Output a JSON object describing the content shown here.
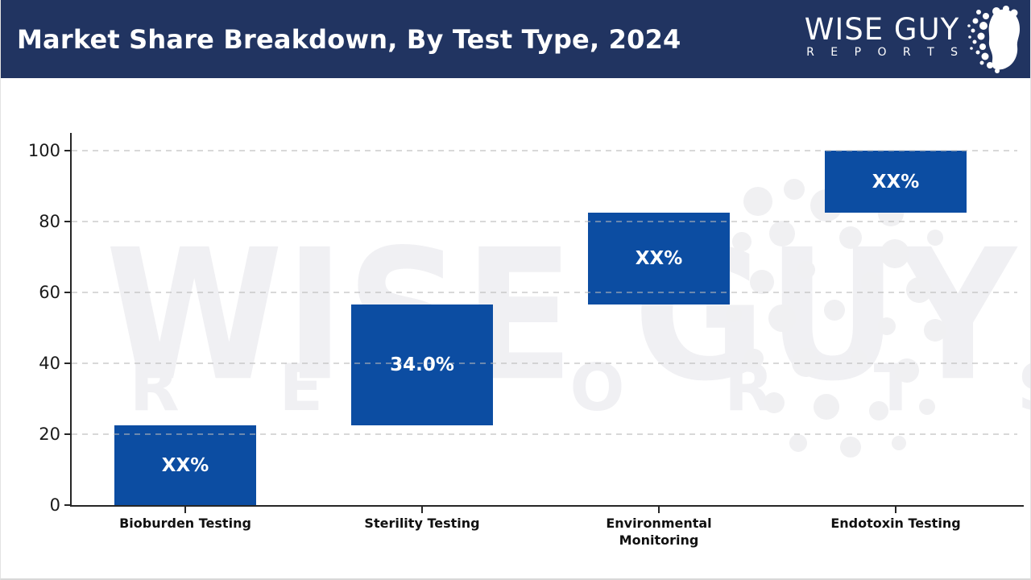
{
  "header": {
    "title": "Market Share Breakdown, By Test Type, 2024",
    "background_color": "#213461",
    "logo": {
      "line1": "WISE GUY",
      "line2": "R E P O R T S"
    }
  },
  "watermark": {
    "line1": "WISE GUY",
    "line2": "R E P O R T S"
  },
  "chart_data": {
    "type": "bar",
    "subtype": "waterfall",
    "title": "Market Share Breakdown, By Test Type, 2024",
    "categories": [
      "Bioburden Testing",
      "Sterility Testing",
      "Environmental Monitoring",
      "Endotoxin Testing"
    ],
    "tick_labels": [
      "Bioburden Testing",
      "Sterility Testing",
      "Environmental\nMonitoring",
      "Endotoxin Testing"
    ],
    "segments": [
      {
        "category": "Bioburden Testing",
        "start": 0,
        "end": 22.5,
        "value_label": "XX%"
      },
      {
        "category": "Sterility Testing",
        "start": 22.5,
        "end": 56.5,
        "value_label": "34.0%"
      },
      {
        "category": "Environmental Monitoring",
        "start": 56.5,
        "end": 82.5,
        "value_label": "XX%"
      },
      {
        "category": "Endotoxin Testing",
        "start": 82.5,
        "end": 100,
        "value_label": "XX%"
      }
    ],
    "y_ticks": [
      0,
      20,
      40,
      60,
      80,
      100
    ],
    "ylim": [
      0,
      105
    ],
    "xlabel": "",
    "ylabel": "",
    "bar_color": "#0c4da2",
    "grid": true,
    "grid_style": "dashed",
    "legend": false
  }
}
